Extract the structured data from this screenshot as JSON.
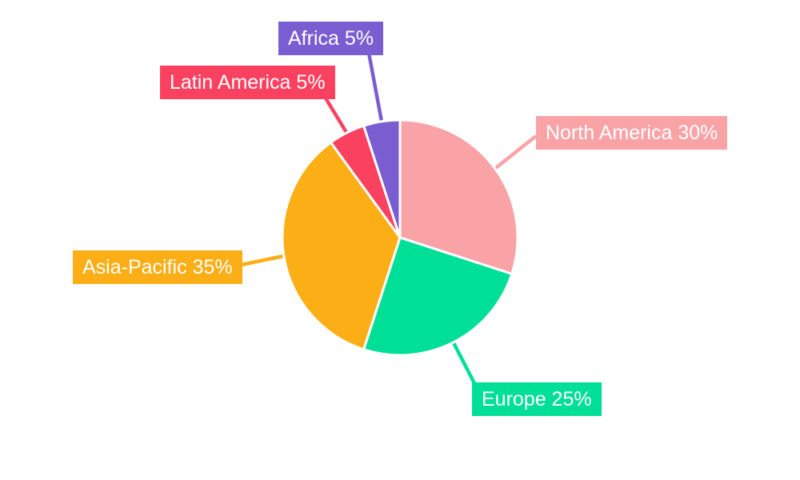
{
  "chart_data": {
    "type": "pie",
    "title": "",
    "background": "#ffffff",
    "start_angle_deg": 0,
    "direction": "clockwise",
    "separator_color": "#ffffff",
    "label_text_color": "#ffffff",
    "legend_position": "callout-labels",
    "categories": [
      "North America",
      "Europe",
      "Asia-Pacific",
      "Latin America",
      "Africa"
    ],
    "values": [
      30,
      25,
      35,
      5,
      5
    ],
    "slices": [
      {
        "name": "North America",
        "value": 30,
        "label": "North America 30%",
        "color": "#F9A3A7"
      },
      {
        "name": "Europe",
        "value": 25,
        "label": "Europe 25%",
        "color": "#00DF96"
      },
      {
        "name": "Asia-Pacific",
        "value": 35,
        "label": "Asia-Pacific 35%",
        "color": "#FCAE17"
      },
      {
        "name": "Latin America",
        "value": 5,
        "label": "Latin America 5%",
        "color": "#FA4160"
      },
      {
        "name": "Africa",
        "value": 5,
        "label": "Africa 5%",
        "color": "#7A5ED1"
      }
    ]
  }
}
